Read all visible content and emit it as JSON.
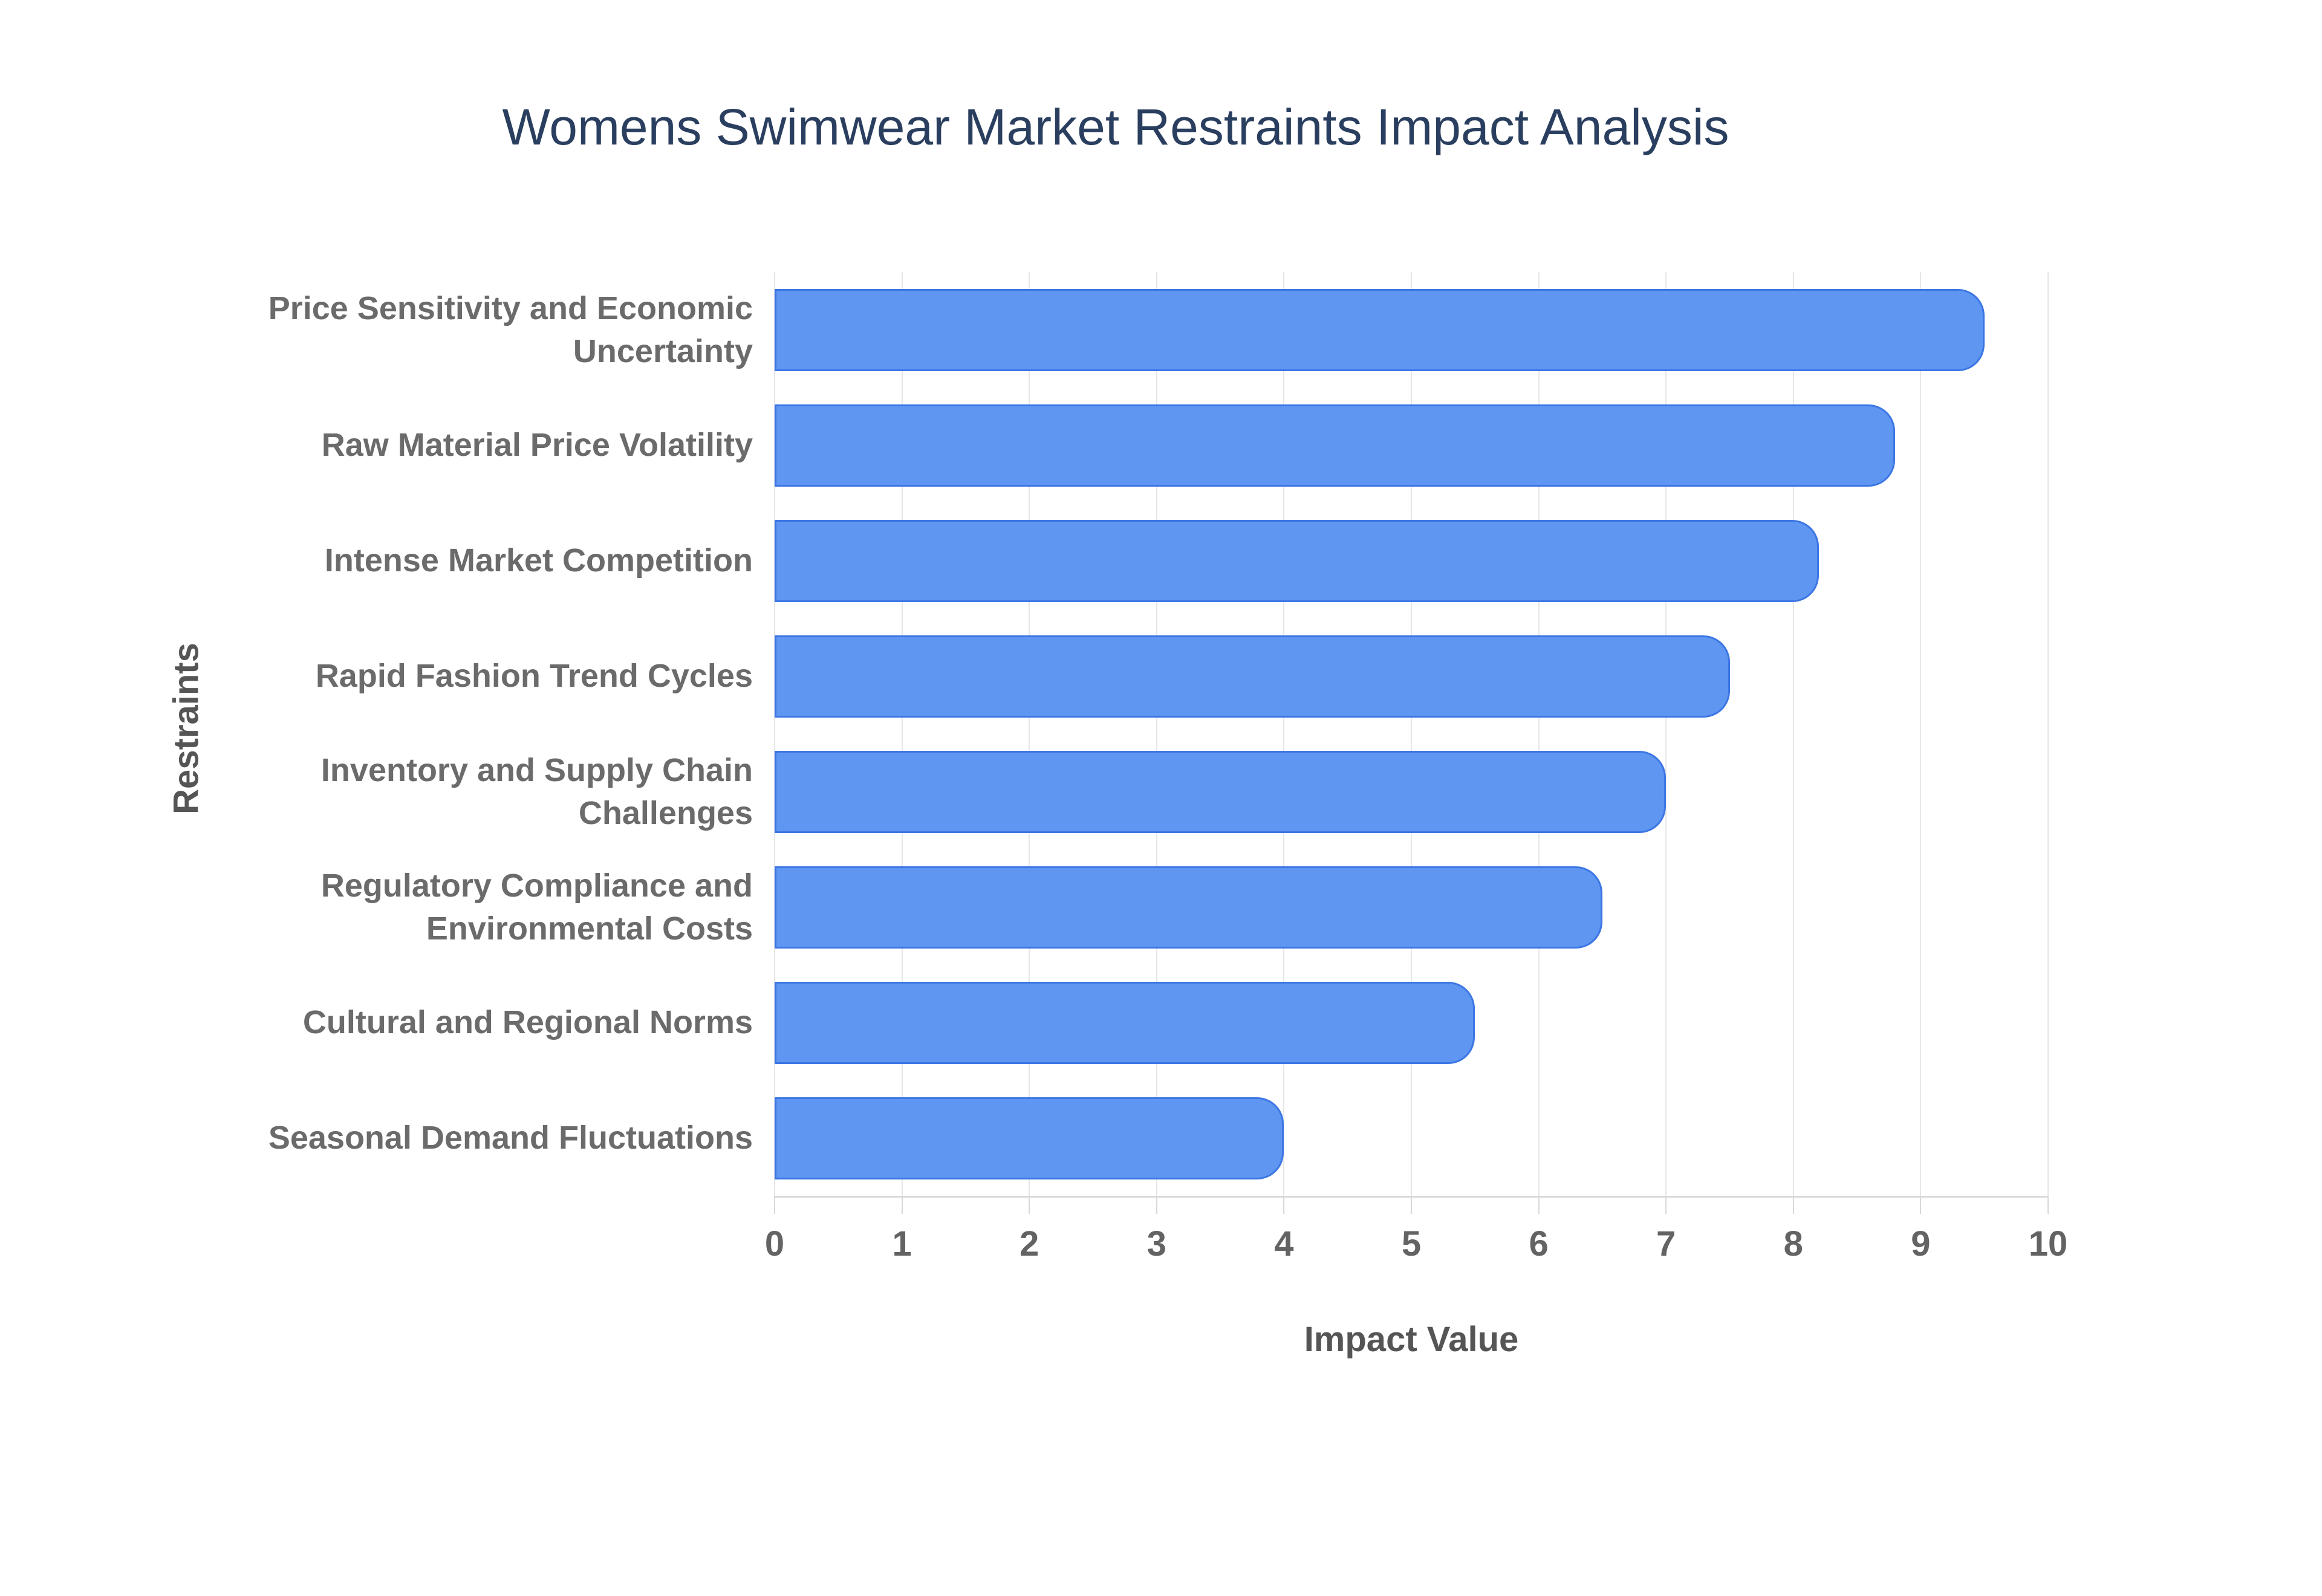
{
  "chart_data": {
    "type": "bar",
    "orientation": "horizontal",
    "title": "Womens Swimwear Market Restraints Impact Analysis",
    "categories": [
      "Price Sensitivity and Economic Uncertainty",
      "Raw Material Price Volatility",
      "Intense Market Competition",
      "Rapid Fashion Trend Cycles",
      "Inventory and Supply Chain Challenges",
      "Regulatory Compliance and Environmental Costs",
      "Cultural and Regional Norms",
      "Seasonal Demand Fluctuations"
    ],
    "values": [
      9.5,
      8.8,
      8.2,
      7.5,
      7.0,
      6.5,
      5.5,
      4.0
    ],
    "xlabel": "Impact Value",
    "ylabel": "Restraints",
    "xlim": [
      0,
      10
    ],
    "xticks": [
      0,
      1,
      2,
      3,
      4,
      5,
      6,
      7,
      8,
      9,
      10
    ],
    "grid": true,
    "legend": false,
    "colors": {
      "bar_fill": "#5E96F2",
      "bar_border": "#3C76E4",
      "title": "#2a3f5f",
      "category_label": "#6b6b6b",
      "tick_label": "#636363",
      "axis_title": "#555555",
      "gridline": "#e6e6e6",
      "axis_line": "#d6d9dc",
      "background": "#ffffff"
    }
  }
}
